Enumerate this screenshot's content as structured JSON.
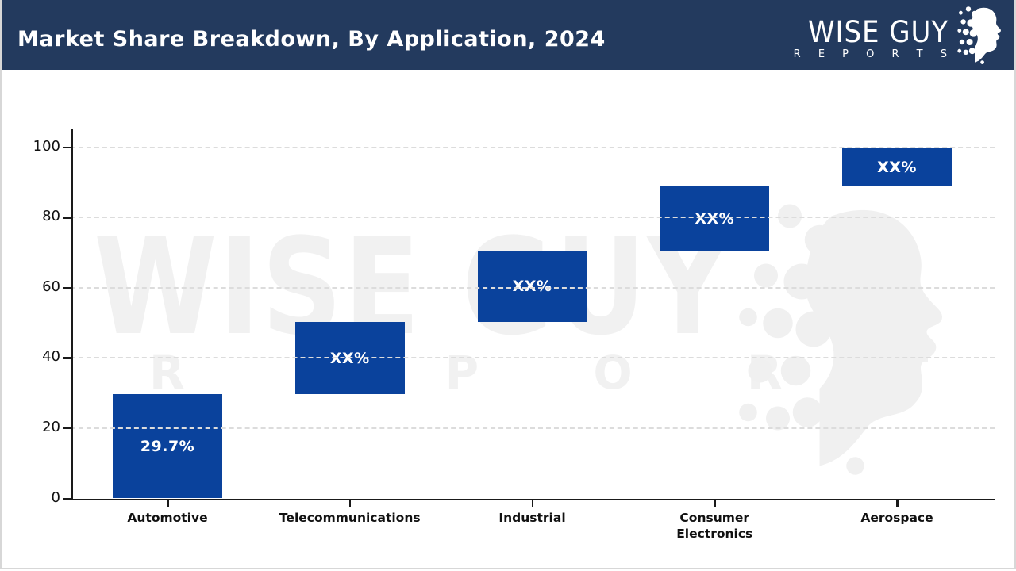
{
  "header": {
    "title": "Market Share Breakdown, By Application, 2024",
    "bg_color": "#233a5e",
    "logo": {
      "wordmark": "WISE GUY",
      "subtext": "R E P O R T S"
    }
  },
  "watermark": {
    "wordmark": "WISE GUY",
    "subtext": "R E P O R T S"
  },
  "chart_data": {
    "type": "bar",
    "variant": "waterfall",
    "title": "Market Share Breakdown, By Application, 2024",
    "categories": [
      "Automotive",
      "Telecommunications",
      "Industrial",
      "Consumer\nElectronics",
      "Aerospace"
    ],
    "segments": [
      {
        "category": "Automotive",
        "start": 0,
        "end": 29.7,
        "label": "29.7%"
      },
      {
        "category": "Telecommunications",
        "start": 29.7,
        "end": 50.2,
        "label": "XX%"
      },
      {
        "category": "Industrial",
        "start": 50.2,
        "end": 70.4,
        "label": "XX%"
      },
      {
        "category": "Consumer Electronics",
        "start": 70.4,
        "end": 88.8,
        "label": "XX%"
      },
      {
        "category": "Aerospace",
        "start": 88.8,
        "end": 99.7,
        "label": "XX%"
      }
    ],
    "xlabel": "",
    "ylabel": "",
    "ylim": [
      0,
      105
    ],
    "yticks": [
      0,
      20,
      40,
      60,
      80,
      100
    ],
    "grid": {
      "horizontal": true,
      "style": "dashed",
      "color": "#dcdcdc",
      "drawn_above_bars": true
    },
    "legend": "none",
    "bar_color": "#0a429c",
    "bar_label_color": "#ffffff",
    "axis_color": "#1a1a1a",
    "header_color": "#233a5e"
  }
}
